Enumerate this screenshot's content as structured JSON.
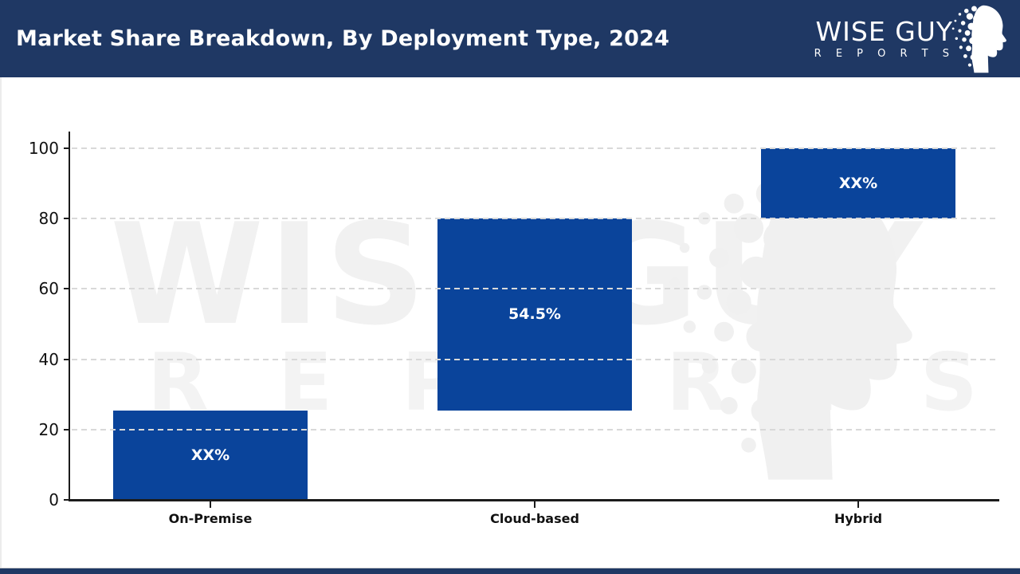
{
  "header": {
    "title": "Market Share Breakdown, By Deployment Type, 2024",
    "logo": {
      "name": "WISE GUY",
      "subname": "R E P O R T S"
    }
  },
  "watermark": {
    "line1": "WISE GUY",
    "line2": "R E P O R T S"
  },
  "chart_data": {
    "type": "bar",
    "subtype": "waterfall",
    "title": "Market Share Breakdown, By Deployment Type, 2024",
    "categories": [
      "On-Premise",
      "Cloud-based",
      "Hybrid"
    ],
    "segments": [
      {
        "category": "On-Premise",
        "start": 0,
        "end": 25.5,
        "label": "XX%"
      },
      {
        "category": "Cloud-based",
        "start": 25.5,
        "end": 80,
        "label": "54.5%"
      },
      {
        "category": "Hybrid",
        "start": 80,
        "end": 100,
        "label": "XX%"
      }
    ],
    "yticks": [
      0,
      20,
      40,
      60,
      80,
      100
    ],
    "ylim": [
      0,
      100
    ],
    "xlabel": "",
    "ylabel": "",
    "grid": "horizontal-dashed-over-bars",
    "legend": "none"
  },
  "colors": {
    "header_bg": "#1f3864",
    "footer_bg": "#1f3864",
    "bar": "#0a449b",
    "bar_label": "#ffffff",
    "axis": "#1b1b1b",
    "grid": "#d9d9d9",
    "watermark": "#f1f1f1",
    "watermark_light": "#f3f3f3",
    "watermark_face": "#f0f0f0"
  }
}
